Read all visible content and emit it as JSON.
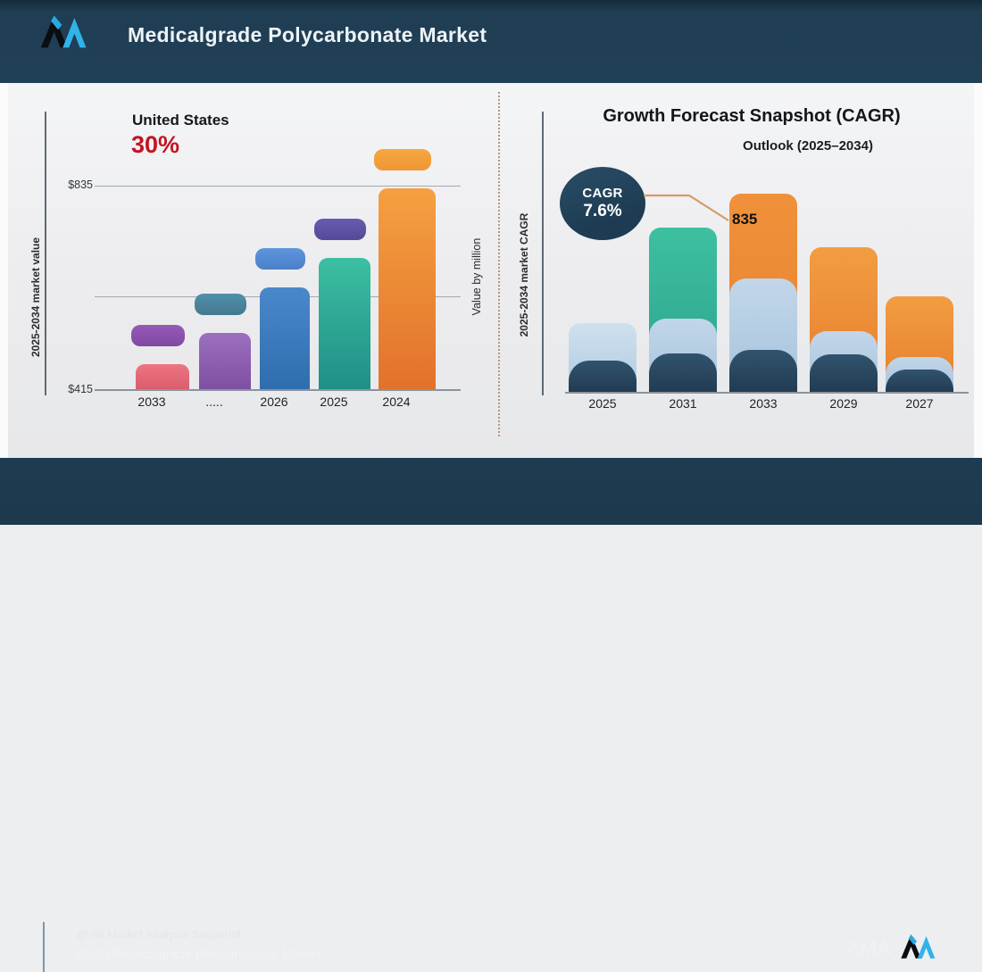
{
  "header": {
    "title": "Medicalgrade Polycarbonate Market",
    "logo_name": "ama-logo"
  },
  "left_chart": {
    "label": "United States",
    "highlight_value": "30%",
    "y_axis_label": "2025-2034 market value",
    "right_axis_label": "Value by million"
  },
  "right_chart": {
    "title": "Growth Forecast Snapshot (CAGR)",
    "subtitle": "Outlook (2025–2034)",
    "y_axis_label": "2025-2034 market CAGR",
    "bubble": {
      "label": "CAGR",
      "value": "7.6%"
    },
    "data_label": "835"
  },
  "footer": {
    "line1": "@ All Market Analysis Snapshot",
    "line2": "GlobalMedicalgrade Polycarbonate Market",
    "brand": "AMA"
  },
  "colors": {
    "header_bg": "#1f3e53",
    "accent_red": "#c41322",
    "bubble_navy": "#1f3e54",
    "connector_tan": "#d49a6a",
    "orange": "#ef9336",
    "teal": "#3cba9b",
    "light_blue": "#bcd2e6",
    "dome_navy": "#2c4d67"
  },
  "chart_data": [
    {
      "type": "bar",
      "title": "United States",
      "annotation": "30%",
      "categories": [
        "2033",
        ".....",
        "2026",
        "2025",
        "2024"
      ],
      "values": [
        468,
        532,
        626,
        687,
        830
      ],
      "ylabel": "2025-2034 market value",
      "ylabel_right": "Value by million",
      "yticks": [
        {
          "label": "$835",
          "value": 835
        },
        {
          "label": "$415",
          "value": 415
        }
      ],
      "gridline_values": [
        835,
        608
      ],
      "ylim": [
        415,
        875
      ],
      "grid": true,
      "legend": false,
      "bar_gradients": [
        [
          "#ec7583",
          "#da5b6c"
        ],
        [
          "#9d6fc0",
          "#7d4fa1"
        ],
        [
          "#4a88cc",
          "#2d6dad"
        ],
        [
          "#3cbfa2",
          "#1f8e87"
        ],
        [
          "#f5a040",
          "#e2712b"
        ]
      ],
      "cap_gradients": [
        [
          "#9659b8",
          "#7f49a2"
        ],
        [
          "#528fa9",
          "#43798f"
        ],
        [
          "#5e94da",
          "#4a80c8"
        ],
        [
          "#665cb0",
          "#554a97"
        ],
        [
          "#f6a83f",
          "#ef9636"
        ]
      ]
    },
    {
      "type": "bar-stacked",
      "title": "Growth Forecast Snapshot (CAGR)",
      "subtitle": "Outlook (2025–2034)",
      "cagr": "7.6%",
      "categories": [
        "2025",
        "2031",
        "2033",
        "2029",
        "2027"
      ],
      "series": [
        {
          "name": "base",
          "values": [
            35,
            43,
            47,
            42,
            25
          ]
        },
        {
          "name": "mid",
          "values": [
            0,
            39,
            80,
            26,
            14
          ]
        },
        {
          "name": "top",
          "values": [
            42,
            102,
            95,
            94,
            68
          ]
        }
      ],
      "units": "relative height (px), no numeric axis shown",
      "annotation": {
        "text": "835",
        "category": "2033"
      },
      "top_gradients": [
        [
          "#cfe0ef",
          "#b0cbe2"
        ],
        [
          "#3ec0a0",
          "#2aa18c"
        ],
        [
          "#f0913a",
          "#e8832f"
        ],
        [
          "#f29d42",
          "#e67e2e"
        ],
        [
          "#f29d42",
          "#e67e2e"
        ]
      ],
      "mid_gradient": [
        "#c2d6e9",
        "#a7c3dc"
      ],
      "base_gradient": [
        "#31536e",
        "#223c52"
      ],
      "ylabel": "2025-2034 market CAGR",
      "legend": false,
      "grid": false
    }
  ]
}
